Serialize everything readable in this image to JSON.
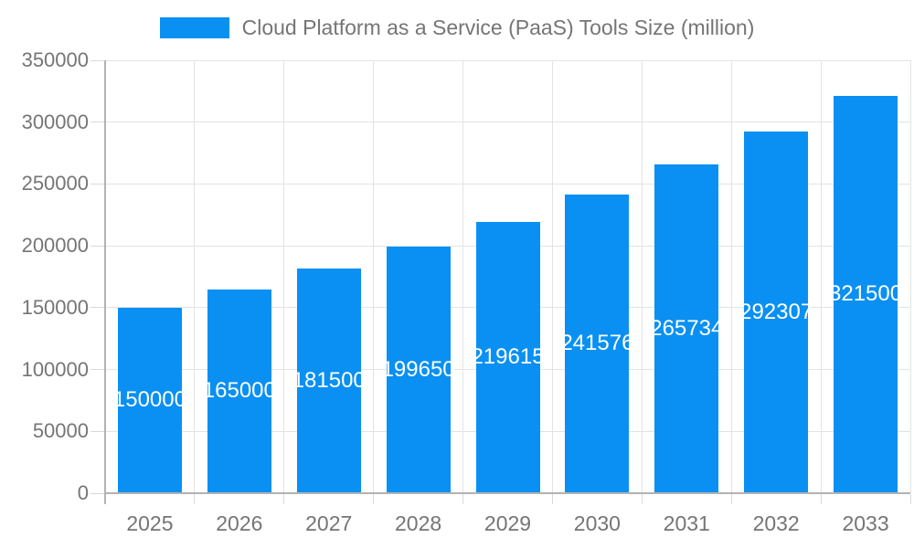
{
  "chart_data": {
    "type": "bar",
    "legend_label": "Cloud Platform as a Service (PaaS) Tools Size (million)",
    "categories": [
      "2025",
      "2026",
      "2027",
      "2028",
      "2029",
      "2030",
      "2031",
      "2032",
      "2033"
    ],
    "values": [
      150000,
      165000,
      181500,
      199650,
      219615,
      241576,
      265734,
      292307,
      321500
    ],
    "value_labels": [
      "150000",
      "165000",
      "181500",
      "199650",
      "219615",
      "241576",
      "265734",
      "292307",
      "321500"
    ],
    "ytick_labels": [
      "0",
      "50000",
      "100000",
      "150000",
      "200000",
      "250000",
      "300000",
      "350000"
    ],
    "ylim": [
      0,
      350000
    ],
    "ytick_step": 50000,
    "grid": true,
    "legend_position": "top-center",
    "xlabel": "",
    "ylabel": "",
    "colors": {
      "bar": "#0a90f2",
      "value_label": "#ffffff",
      "axis_text": "#757575",
      "gridline": "#e3e3e3",
      "axis_line": "#b3b3b3",
      "background": "#ffffff"
    }
  }
}
